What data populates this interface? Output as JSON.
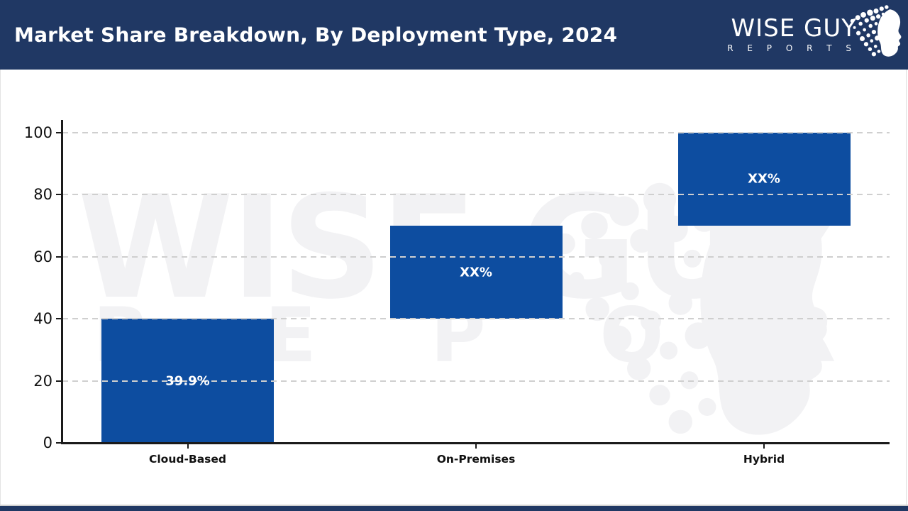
{
  "header": {
    "title": "Market Share Breakdown, By Deployment Type, 2024",
    "logo": {
      "name_line": "WISE GUY",
      "reports_line": "R E P O R T S"
    }
  },
  "watermark": {
    "line1": "WISE GUY",
    "line2": "R E P O R T S"
  },
  "chart_data": {
    "type": "bar",
    "variant": "floating-waterfall",
    "title": "Market Share Breakdown, By Deployment Type, 2024",
    "categories": [
      "Cloud-Based",
      "On-Premises",
      "Hybrid"
    ],
    "series": [
      {
        "name": "Market Share %",
        "segments": [
          {
            "category": "Cloud-Based",
            "start": 0,
            "end": 39.9,
            "label": "39.9%"
          },
          {
            "category": "On-Premises",
            "start": 39.9,
            "end": 69.9,
            "label": "XX%"
          },
          {
            "category": "Hybrid",
            "start": 69.9,
            "end": 100,
            "label": "XX%"
          }
        ]
      }
    ],
    "xlabel": "",
    "ylabel": "",
    "ylim": [
      0,
      100
    ],
    "y_ticks": [
      0,
      20,
      40,
      60,
      80,
      100
    ],
    "grid": {
      "horizontal": true,
      "style": "dashed"
    },
    "legend_position": "none"
  },
  "colors": {
    "header_bg": "#203864",
    "footer_bg": "#203864",
    "bar_fill": "#0d4da0",
    "bar_label": "#ffffff",
    "gridline": "#cfcfcf",
    "axis": "#1a1a1a",
    "watermark": "#f2f2f4"
  }
}
